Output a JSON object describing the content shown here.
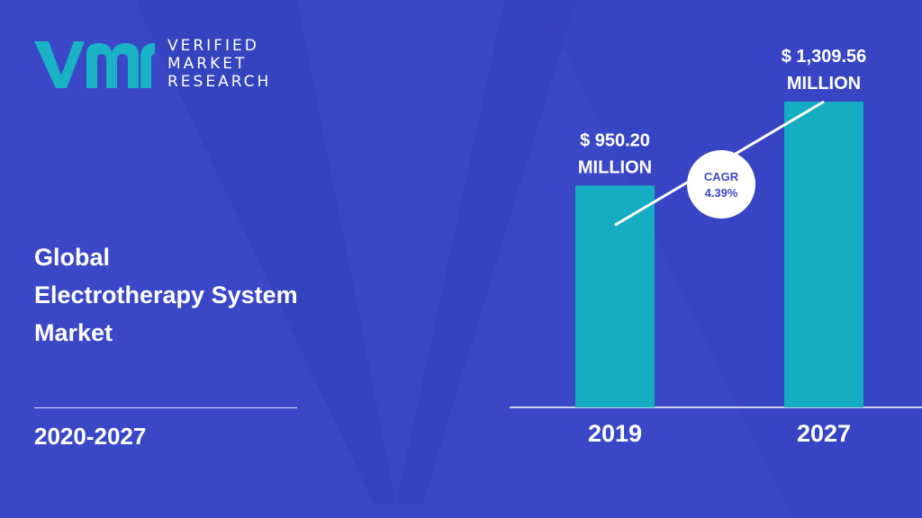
{
  "brand": {
    "line1": "VERIFIED",
    "line2": "MARKET",
    "line3": "RESEARCH",
    "logo_color": "#1ab3c6"
  },
  "title": {
    "line1": "Global",
    "line2": "Electrotherapy System",
    "line3": "Market"
  },
  "period": "2020-2027",
  "colors": {
    "background": "#3b49c9",
    "bar": "#14adc1",
    "text": "#ffffff"
  },
  "chart_data": {
    "type": "bar",
    "categories": [
      "2019",
      "2027"
    ],
    "values": [
      950.2,
      1309.56
    ],
    "value_labels": [
      [
        "$ 950.20",
        "MILLION"
      ],
      [
        "$ 1,309.56",
        "MILLION"
      ]
    ],
    "cagr": {
      "label": "CAGR",
      "value": "4.39%"
    },
    "title": "",
    "xlabel": "",
    "ylabel": ""
  }
}
